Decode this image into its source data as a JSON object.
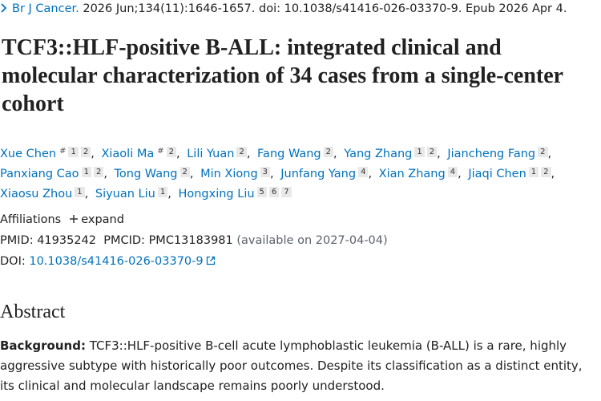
{
  "citation": {
    "journal": "Br J Cancer.",
    "details": "2026 Jun;134(11):1646-1657. doi: 10.1038/s41416-026-03370-9. Epub 2026 Apr 4."
  },
  "title": "TCF3::HLF-positive B-ALL: integrated clinical and molecular characterization of 34 cases from a single-center cohort",
  "authors": [
    {
      "name": "Xue Chen",
      "mark": "#",
      "affiliations": [
        1,
        2
      ]
    },
    {
      "name": "Xiaoli Ma",
      "mark": "#",
      "affiliations": [
        2
      ]
    },
    {
      "name": "Lili Yuan",
      "affiliations": [
        2
      ]
    },
    {
      "name": "Fang Wang",
      "affiliations": [
        2
      ]
    },
    {
      "name": "Yang Zhang",
      "affiliations": [
        1,
        2
      ]
    },
    {
      "name": "Jiancheng Fang",
      "affiliations": [
        2
      ]
    },
    {
      "name": "Panxiang Cao",
      "affiliations": [
        1,
        2
      ]
    },
    {
      "name": "Tong Wang",
      "affiliations": [
        2
      ]
    },
    {
      "name": "Min Xiong",
      "affiliations": [
        3
      ]
    },
    {
      "name": "Junfang Yang",
      "affiliations": [
        4
      ]
    },
    {
      "name": "Xian Zhang",
      "affiliations": [
        4
      ]
    },
    {
      "name": "Jiaqi Chen",
      "affiliations": [
        1,
        2
      ]
    },
    {
      "name": "Xiaosu Zhou",
      "affiliations": [
        1
      ]
    },
    {
      "name": "Siyuan Liu",
      "affiliations": [
        1
      ]
    },
    {
      "name": "Hongxing Liu",
      "affiliations": [
        5,
        6,
        7
      ]
    }
  ],
  "affiliations": {
    "label": "Affiliations",
    "toggle": "expand"
  },
  "identifiers": {
    "pmid_label": "PMID:",
    "pmid": 41935242,
    "pmcid_label": "PMCID:",
    "pmcid": "PMC13183981",
    "pmcid_note": "(available on 2027-04-04)",
    "doi_label": "DOI:",
    "doi": "10.1038/s41416-026-03370-9"
  },
  "abstract": {
    "heading": "Abstract",
    "background_label": "Background:",
    "background_text": "TCF3::HLF-positive B-cell acute lymphoblastic leukemia (B-ALL) is a rare, highly aggressive subtype with historically poor outcomes. Despite its classification as a distinct entity, its clinical and molecular landscape remains poorly understood."
  }
}
